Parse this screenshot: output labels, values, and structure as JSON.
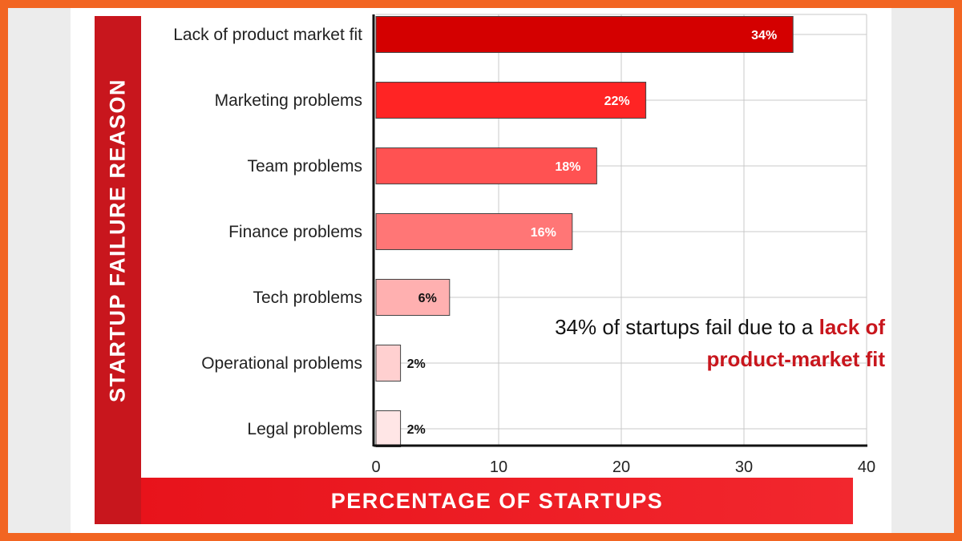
{
  "colors": {
    "frame": "#f26522",
    "banner": "#c8161d",
    "bar_outline": "#444444",
    "grid": "#c8c8c8",
    "axis": "#111111"
  },
  "y_banner_label": "STARTUP FAILURE REASON",
  "x_banner_label": "PERCENTAGE OF STARTUPS",
  "annotation": {
    "prefix": "34% of startups fail due to a ",
    "highlight": "lack of product-market fit"
  },
  "chart_data": {
    "type": "bar",
    "orientation": "horizontal",
    "categories": [
      "Lack of product market fit",
      "Marketing problems",
      "Team problems",
      "Finance problems",
      "Tech problems",
      "Operational problems",
      "Legal problems"
    ],
    "values": [
      34,
      22,
      18,
      16,
      6,
      2,
      2
    ],
    "value_labels": [
      "34%",
      "22%",
      "18%",
      "16%",
      "6%",
      "2%",
      "2%"
    ],
    "bar_colors": [
      "#d40000",
      "#ff2424",
      "#ff5252",
      "#ff7676",
      "#ffb0b0",
      "#ffd0d0",
      "#ffe6e6"
    ],
    "xlim": [
      0,
      40
    ],
    "x_ticks": [
      0,
      10,
      20,
      30,
      40
    ],
    "x_tick_labels": [
      "0",
      "10",
      "20",
      "30",
      "40"
    ],
    "grid": true,
    "xlabel": "PERCENTAGE OF STARTUPS",
    "ylabel": "STARTUP FAILURE REASON"
  }
}
